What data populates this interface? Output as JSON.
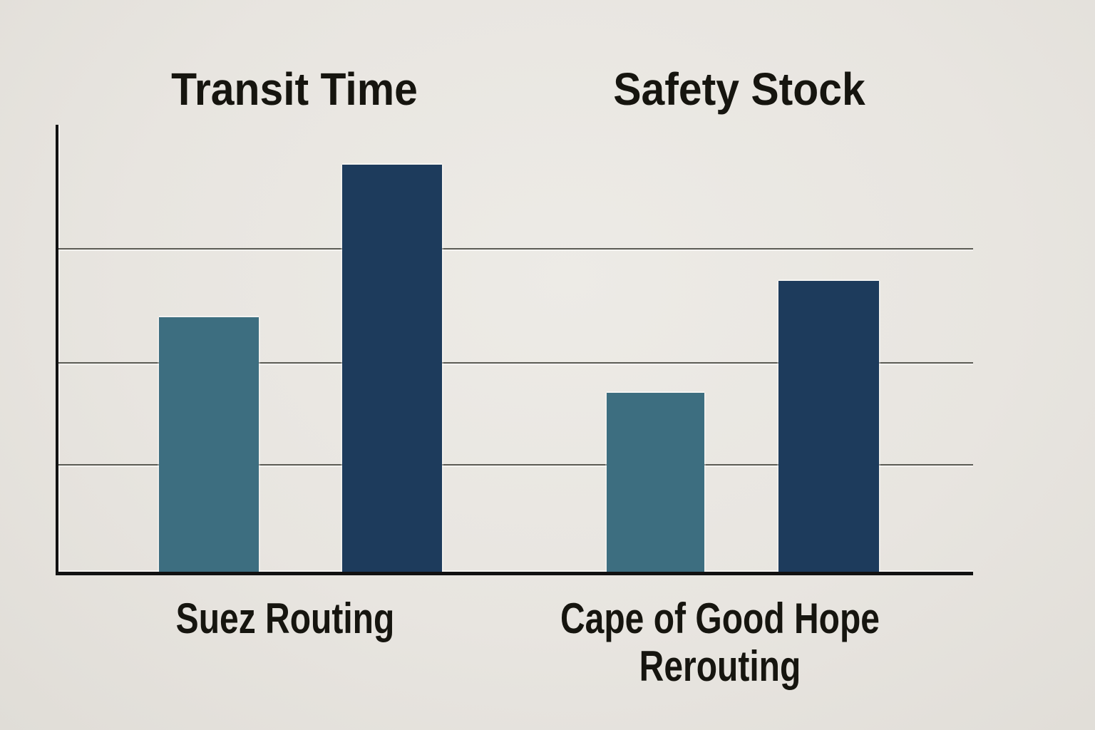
{
  "chart_data": {
    "type": "bar",
    "title": "",
    "group_titles": [
      "Transit Time",
      "Safety Stock"
    ],
    "x_labels": [
      "Suez Routing",
      "Cape of Good Hope Rerouting"
    ],
    "series": [
      {
        "name": "teal-series",
        "color": "#3d6e80",
        "values_pct_of_y_axis": [
          57,
          40
        ]
      },
      {
        "name": "navy-series",
        "color": "#1d3b5c",
        "values_pct_of_y_axis": [
          91,
          65
        ]
      }
    ],
    "y_axis": {
      "tick_labels": [],
      "gridlines_pct_from_top": [
        27.6,
        53.1,
        75.9
      ]
    },
    "legend": "none",
    "grid": "horizontal-only",
    "colors": {
      "background": "#e8e5e0",
      "axis": "#111111",
      "gridline": "#5c5c55",
      "text": "#16150f"
    }
  }
}
